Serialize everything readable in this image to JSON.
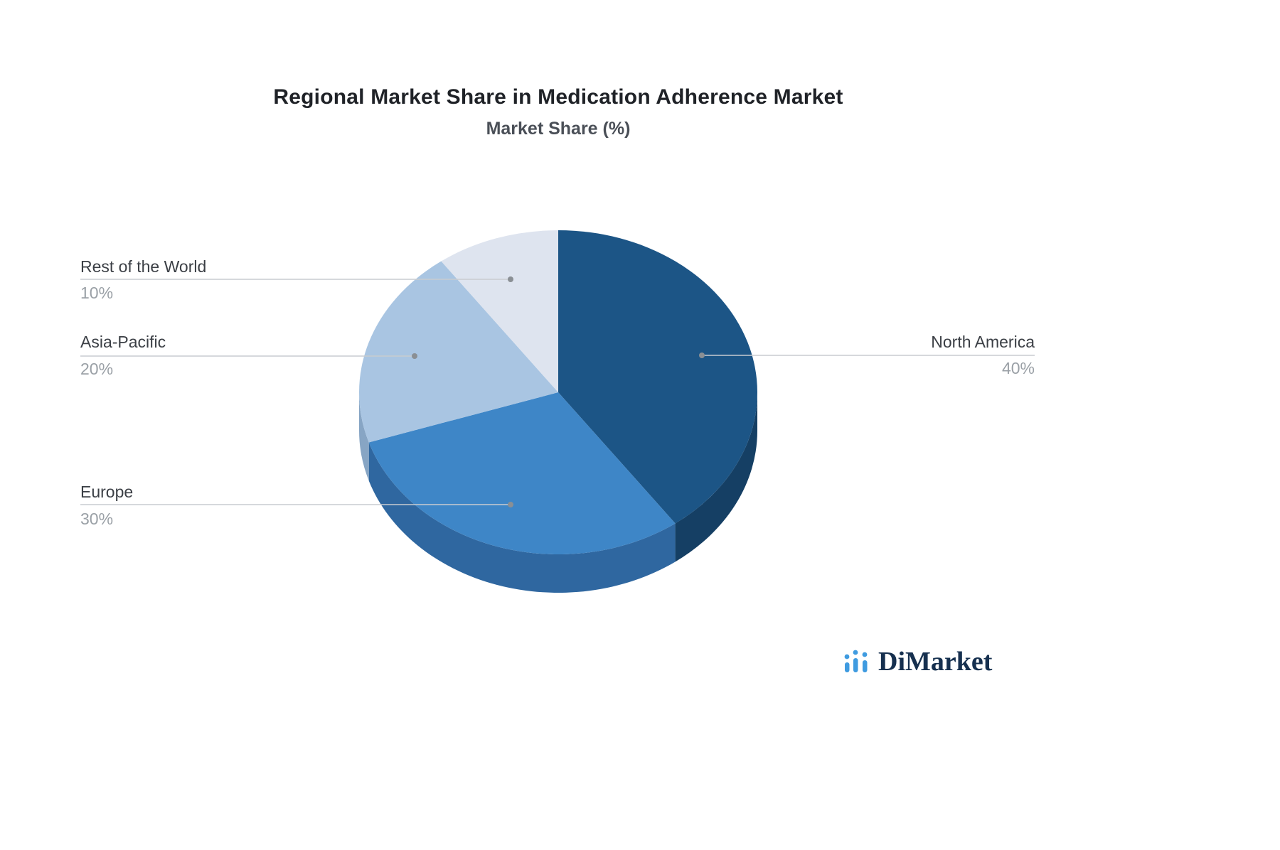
{
  "header": {
    "title": "Regional Market Share in Medication Adherence Market",
    "subtitle": "Market Share (%)"
  },
  "chart_data": {
    "type": "pie",
    "title": "Regional Market Share in Medication Adherence Market",
    "subtitle": "Market Share (%)",
    "unit": "%",
    "effect": "3d",
    "start_angle_deg": 0,
    "direction": "clockwise",
    "legend_position": "callout-labels",
    "slices": [
      {
        "label": "North America",
        "value": 40,
        "pct_label": "40%",
        "color": "#1c5586",
        "side_color": "#153f64"
      },
      {
        "label": "Europe",
        "value": 30,
        "pct_label": "30%",
        "color": "#3e86c7",
        "side_color": "#2f67a0"
      },
      {
        "label": "Asia-Pacific",
        "value": 20,
        "pct_label": "20%",
        "color": "#a9c5e2",
        "side_color": "#87a5c4"
      },
      {
        "label": "Rest of the World",
        "value": 10,
        "pct_label": "10%",
        "color": "#dee4ef",
        "side_color": "#b9c2d1"
      }
    ]
  },
  "branding": {
    "logo_text": "DiMarket",
    "icon": "bar-chart-icon",
    "icon_color": "#3f9be0",
    "text_color": "#16304f"
  }
}
